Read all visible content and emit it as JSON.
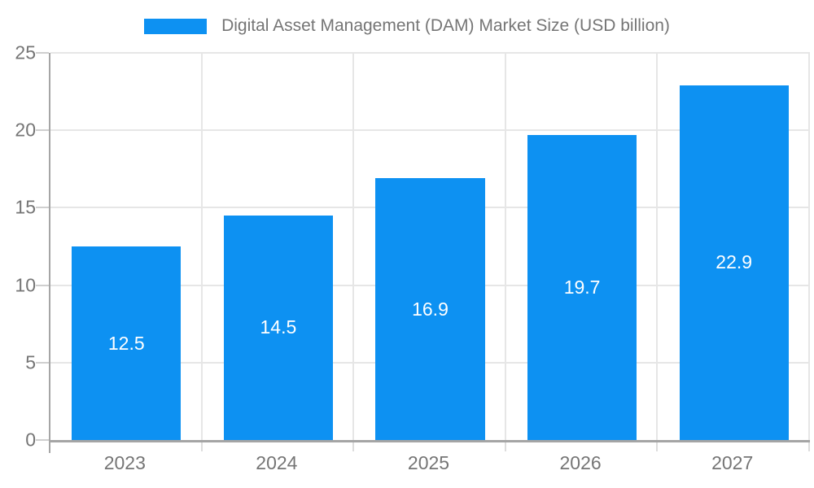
{
  "legend": {
    "label": "Digital Asset Management (DAM) Market Size (USD billion)"
  },
  "chart_data": {
    "type": "bar",
    "title": "Digital Asset Management (DAM) Market Size (USD billion)",
    "categories": [
      "2023",
      "2024",
      "2025",
      "2026",
      "2027"
    ],
    "values": [
      12.5,
      14.5,
      16.9,
      19.7,
      22.9
    ],
    "value_labels": [
      "12.5",
      "14.5",
      "16.9",
      "19.7",
      "22.9"
    ],
    "xlabel": "",
    "ylabel": "",
    "ylim": [
      0,
      25
    ],
    "yticks": [
      0,
      5,
      10,
      15,
      20,
      25
    ],
    "grid": true,
    "legend_position": "top",
    "bar_color": "#0d91f2",
    "value_label_color": "#ffffff",
    "axis_text_color": "#757575",
    "gridline_color": "#e6e6e6",
    "axis_line_color": "#a5a5a5"
  }
}
